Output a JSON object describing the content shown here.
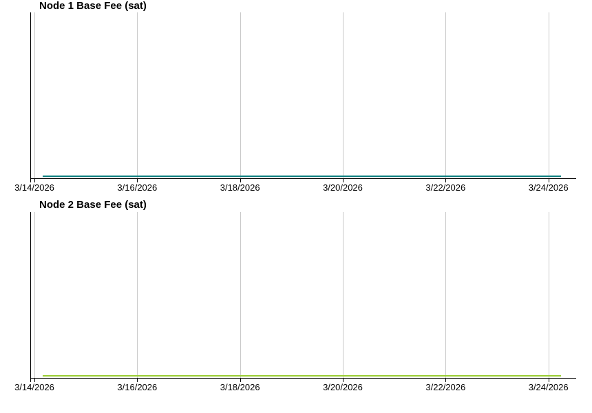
{
  "style": {
    "background": "#ffffff",
    "axis_color": "#000000",
    "grid_color": "#c9c9c9",
    "tick_label_color": "#000000",
    "title_color": "#000000"
  },
  "chart_data": [
    {
      "type": "line",
      "title": "Node 1 Base Fee (sat)",
      "x_tick_labels": [
        "3/14/2026",
        "3/16/2026",
        "3/18/2026",
        "3/20/2026",
        "3/22/2026",
        "3/24/2026"
      ],
      "x_range": [
        "3/14/2026",
        "3/24/2026"
      ],
      "y_axis": {
        "tick_labels_visible": false,
        "min": 0
      },
      "grid": {
        "vertical": true,
        "horizontal": false
      },
      "legend": "none",
      "series": [
        {
          "name": "Node 1 Base Fee (sat)",
          "color": "#0d8080",
          "shape": "constant",
          "description": "flat horizontal line just above the x-axis across the whole date range",
          "relative_height_fraction": 0.013,
          "x_extent_fraction": [
            0.023,
            0.972
          ]
        }
      ]
    },
    {
      "type": "line",
      "title": "Node 2 Base Fee (sat)",
      "x_tick_labels": [
        "3/14/2026",
        "3/16/2026",
        "3/18/2026",
        "3/20/2026",
        "3/22/2026",
        "3/24/2026"
      ],
      "x_range": [
        "3/14/2026",
        "3/24/2026"
      ],
      "y_axis": {
        "tick_labels_visible": false,
        "min": 0
      },
      "grid": {
        "vertical": true,
        "horizontal": false
      },
      "legend": "none",
      "series": [
        {
          "name": "Node 2 Base Fee (sat)",
          "color": "#9acd32",
          "shape": "constant",
          "description": "flat horizontal line just above the x-axis across the whole date range",
          "relative_height_fraction": 0.013,
          "x_extent_fraction": [
            0.023,
            0.972
          ]
        }
      ]
    }
  ]
}
